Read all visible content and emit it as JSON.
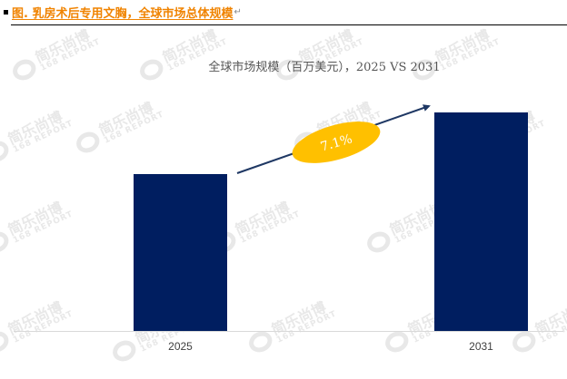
{
  "caption": {
    "text": "图.  乳房术后专用文胸，全球市场总体规模",
    "paragraph_mark": "↵",
    "color": "#f08300"
  },
  "watermark": {
    "cn": "简乐尚博",
    "en": "168 REPORT"
  },
  "chart_data": {
    "type": "bar",
    "title": "全球市场规模（百万美元），2025 VS 2031",
    "categories": [
      "2025",
      "2031"
    ],
    "values": [
      173,
      241
    ],
    "value_note": "No value labels or y-axis shown; bar heights relative (2025 bar ~173px, 2031 bar ~241px tall)",
    "xlabel": "",
    "ylabel": "",
    "grid": false,
    "legend": null,
    "bar_color": "#001e60",
    "annotation": {
      "type": "growth-arrow",
      "label": "7.1%",
      "meaning": "CAGR 2025-2031",
      "ellipse_color": "#ffc000",
      "arrow_color": "#1f3864"
    }
  }
}
